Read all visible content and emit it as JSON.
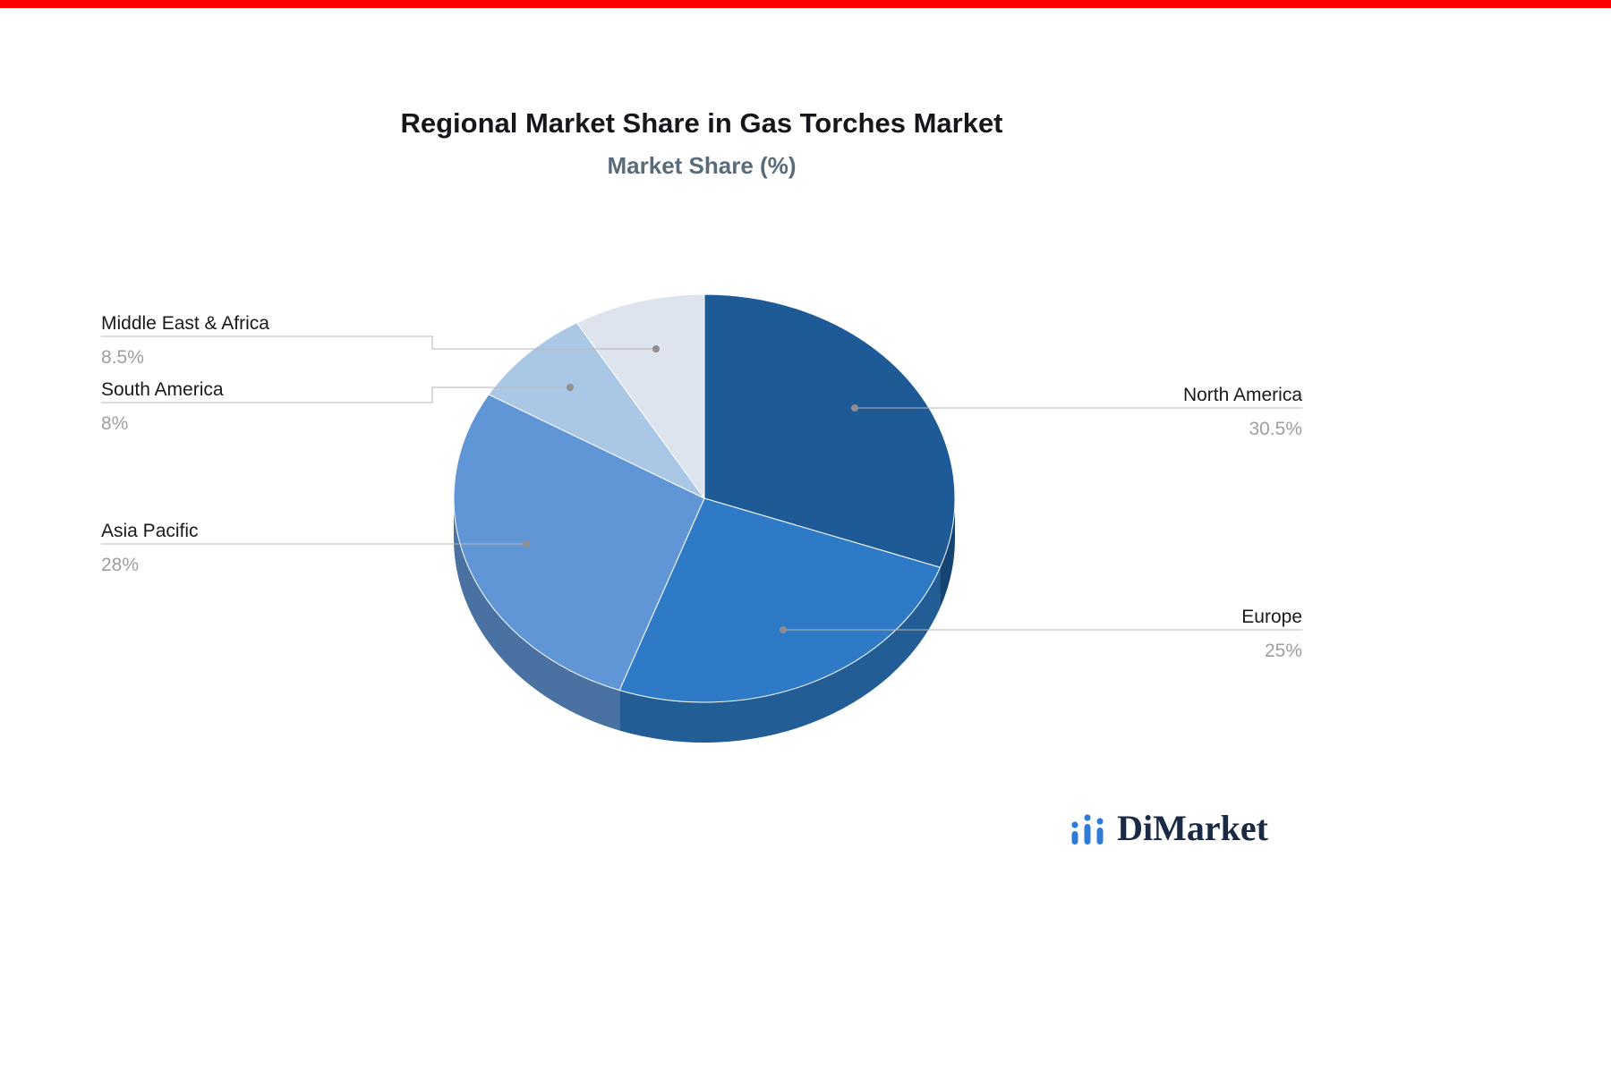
{
  "page": {
    "background": "#ffffff",
    "top_marker_color": "#fe0000"
  },
  "header": {
    "title": "Regional Market Share in Gas Torches Market",
    "subtitle": "Market Share (%)"
  },
  "chart_data": {
    "type": "pie",
    "style": "3d",
    "title": "Regional Market Share in Gas Torches Market",
    "subtitle": "Market Share (%)",
    "unit": "%",
    "direction": "clockwise",
    "start_angle_deg": 0,
    "labels": [
      "North America",
      "Europe",
      "Asia Pacific",
      "South America",
      "Middle East & Africa"
    ],
    "values": [
      30.5,
      25,
      28,
      8,
      8.5
    ],
    "value_labels": [
      "30.5%",
      "25%",
      "28%",
      "8%",
      "8.5%"
    ],
    "colors": [
      "#1d5a96",
      "#2e7ac6",
      "#6096d6",
      "#abc7e6",
      "#dde4ee"
    ],
    "label_color": "#1a1a1a",
    "value_color": "#9e9e9e",
    "leader_line_color": "#b5b5b5",
    "legend_position": "callout-labels"
  },
  "logo": {
    "text": "DiMarket",
    "icon": "bar-chart-icon",
    "text_color": "#1b2a44",
    "icon_color": "#2e7cd6"
  }
}
